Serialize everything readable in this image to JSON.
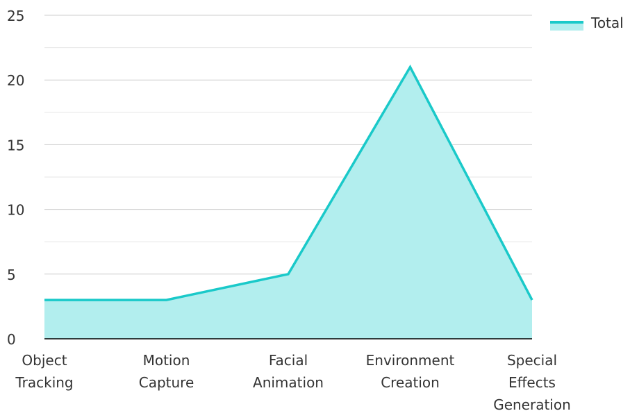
{
  "chart_data": {
    "type": "area",
    "categories": [
      [
        "Object",
        "Tracking"
      ],
      [
        "Motion",
        "Capture"
      ],
      [
        "Facial",
        "Animation"
      ],
      [
        "Environment",
        "Creation"
      ],
      [
        "Special",
        "Effects",
        "Generation"
      ]
    ],
    "series": [
      {
        "name": "Total",
        "values": [
          3,
          3,
          5,
          21,
          3
        ]
      }
    ],
    "ylim": [
      0,
      25
    ],
    "yticks": [
      "0",
      "5",
      "10",
      "15",
      "20",
      "25"
    ],
    "grid": true,
    "legend_position": "top-right",
    "colors": {
      "line": "#1ac9c9",
      "fill": "#b2eeee",
      "grid": "#cccccc",
      "minor_grid": "#e6e6e6",
      "axis": "#000000"
    }
  }
}
